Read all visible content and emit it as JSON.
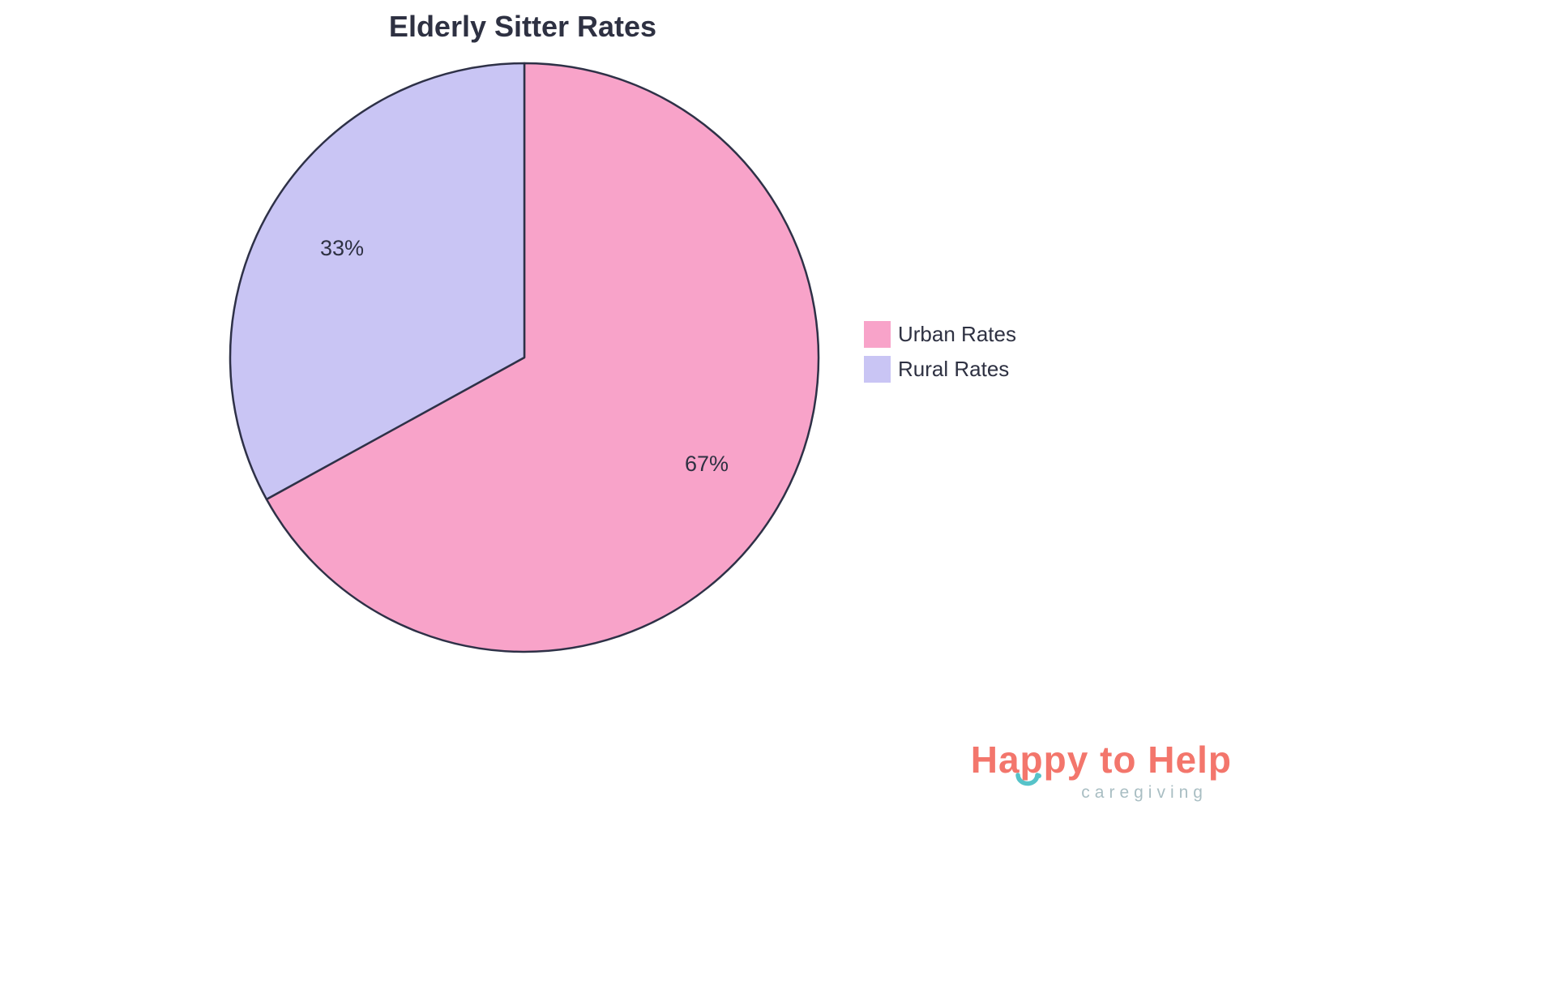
{
  "chart_data": {
    "type": "pie",
    "title": "Elderly Sitter Rates",
    "slices": [
      {
        "label": "Urban Rates",
        "value": 67,
        "display": "67%",
        "color": "#F8A3C9"
      },
      {
        "label": "Rural Rates",
        "value": 33,
        "display": "33%",
        "color": "#C9C5F4"
      }
    ],
    "start_angle_deg": 0,
    "direction": "clockwise",
    "outline_color": "#2E3147",
    "label_color": "#2E3142",
    "legend_position": "right",
    "background": "#FFFFFF"
  },
  "legend": {
    "items": [
      {
        "label": "Urban Rates",
        "color": "#F8A3C9"
      },
      {
        "label": "Rural Rates",
        "color": "#C9C5F4"
      }
    ]
  },
  "branding": {
    "name": "Happy to Help",
    "tagline": "caregiving",
    "brand_color": "#F3766C",
    "tagline_color": "#A9BEC3",
    "icon_color": "#56C3C9",
    "icon": "smile-icon"
  }
}
